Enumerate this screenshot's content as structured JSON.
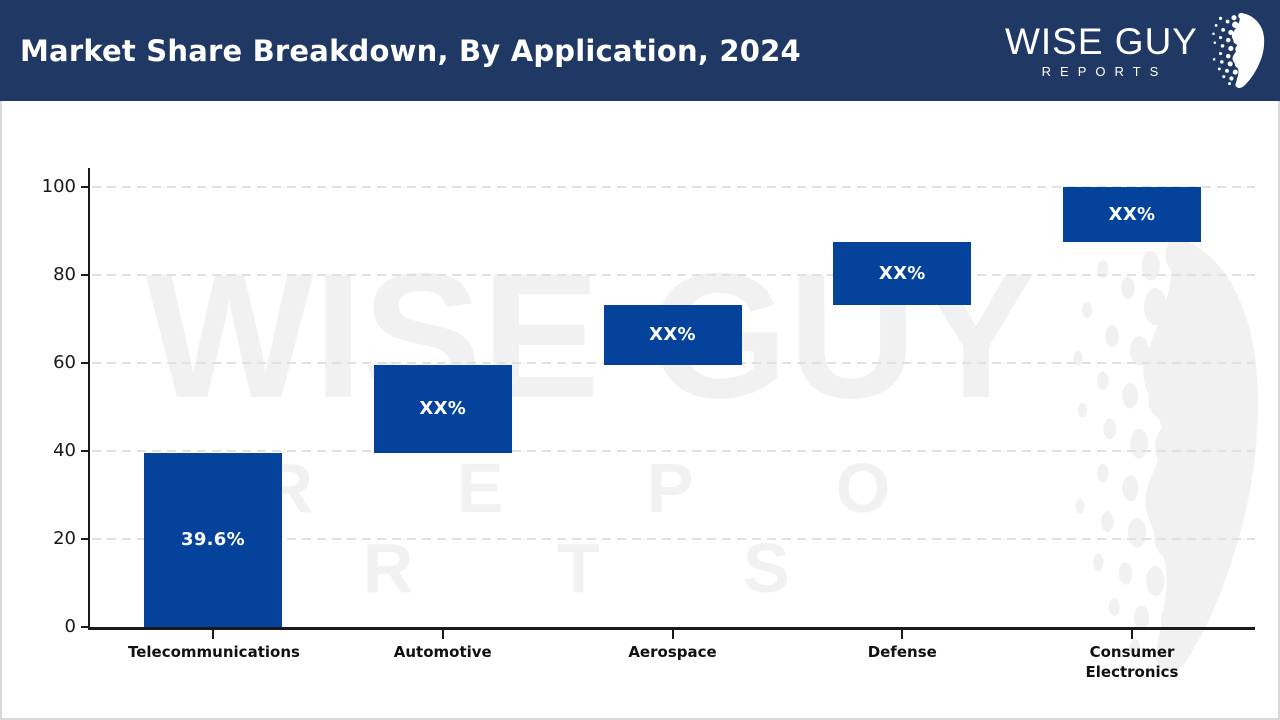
{
  "header": {
    "title": "Market Share Breakdown, By Application, 2024",
    "logo": {
      "line1": "WISE GUY",
      "line2": "REPORTS"
    },
    "bg_color": "#1F3864"
  },
  "watermark": {
    "line1": "WISE GUY",
    "line2": "R E P O R T S",
    "color": "#F1F1F1"
  },
  "chart_data": {
    "type": "bar",
    "subtype": "waterfall",
    "title": "Market Share Breakdown, By Application, 2024",
    "categories": [
      "Telecommunications",
      "Automotive",
      "Aerospace",
      "Defense",
      "Consumer Electronics"
    ],
    "series": [
      {
        "name": "Market share (%)",
        "segments": [
          {
            "category": "Telecommunications",
            "start": 0,
            "end": 39.6,
            "value": 39.6,
            "label": "39.6%"
          },
          {
            "category": "Automotive",
            "start": 39.6,
            "end": 59.6,
            "value": 20.0,
            "label": "XX%"
          },
          {
            "category": "Aerospace",
            "start": 59.6,
            "end": 73.2,
            "value": 13.6,
            "label": "XX%"
          },
          {
            "category": "Defense",
            "start": 73.2,
            "end": 87.6,
            "value": 14.4,
            "label": "XX%"
          },
          {
            "category": "Consumer Electronics",
            "start": 87.6,
            "end": 100,
            "value": 12.4,
            "label": "XX%"
          }
        ]
      }
    ],
    "xlabel": "",
    "ylabel": "",
    "ylim": [
      0,
      100
    ],
    "yticks": [
      0,
      20,
      40,
      60,
      80,
      100
    ],
    "grid": "horizontal-dashed",
    "legend": "none",
    "bar_color": "#04429B",
    "bar_label_color": "#FFFFFF",
    "grid_color": "#E1E1E1",
    "axis_color": "#1A1A1A"
  }
}
